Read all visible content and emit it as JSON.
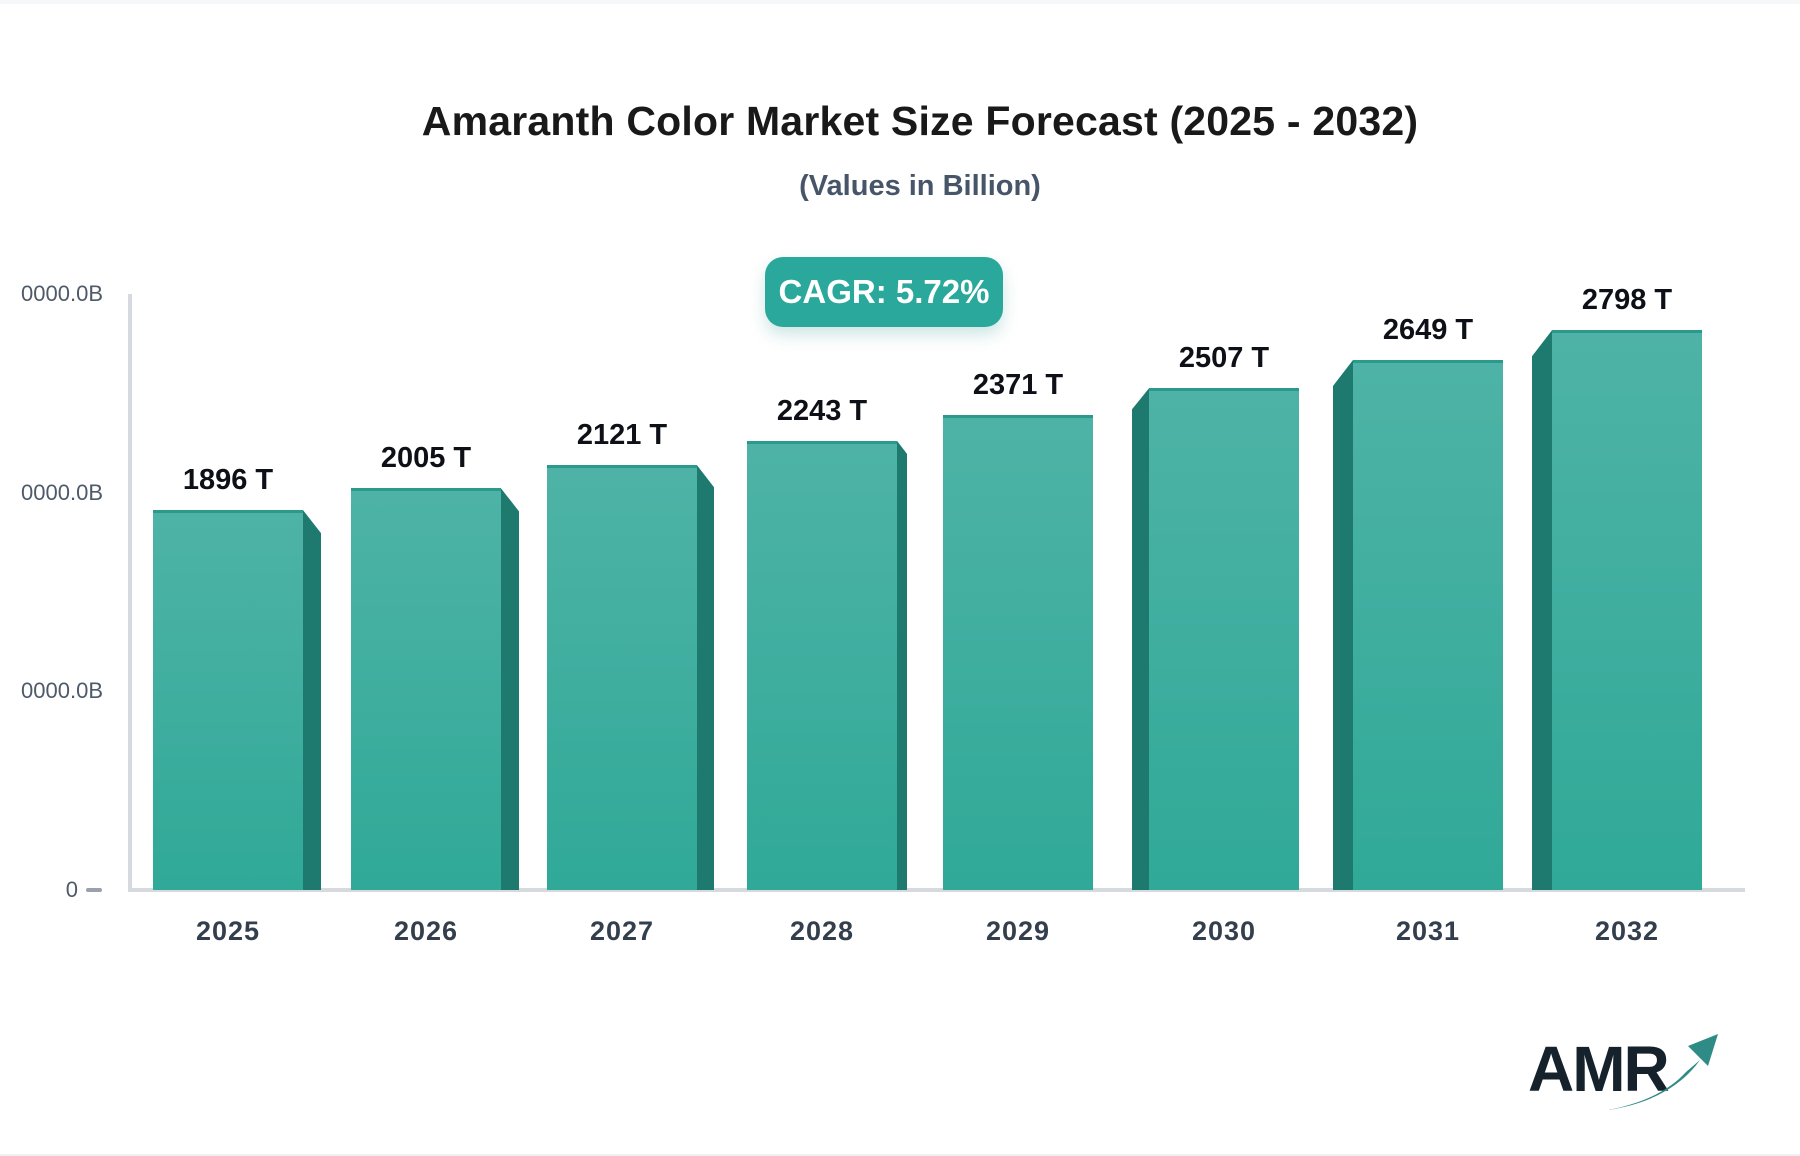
{
  "header": {
    "title": "Amaranth Color Market Size Forecast (2025 - 2032)",
    "subtitle": "(Values in Billion)"
  },
  "badge": {
    "label": "CAGR: 5.72%",
    "bg": "#29a89b"
  },
  "chart_data": {
    "type": "bar",
    "title": "Amaranth Color Market Size Forecast (2025 - 2032)",
    "subtitle": "(Values in Billion)",
    "categories": [
      "2025",
      "2026",
      "2027",
      "2028",
      "2029",
      "2030",
      "2031",
      "2032"
    ],
    "values": [
      1896,
      2005,
      2121,
      2243,
      2371,
      2507,
      2649,
      2798
    ],
    "data_labels": [
      "1896 T",
      "2005 T",
      "2121 T",
      "2243 T",
      "2371 T",
      "2507 T",
      "2649 T",
      "2798 T"
    ],
    "unit_suffix": "T",
    "cagr": "5.72%",
    "xlabel": "",
    "ylabel": "",
    "y_tick_labels": [
      "0000.0B",
      "0000.0B",
      "0000.0B"
    ],
    "y_zero_label": "0",
    "ylim": [
      0,
      2980
    ],
    "grid": false,
    "legend": false,
    "style": "3d-beveled-bars",
    "colors": {
      "bar_top": "#4eb3a6",
      "bar_bottom": "#30a998",
      "bar_side": "#1e7a6e",
      "axis": "#d6d9de",
      "accent": "#29a89b"
    }
  },
  "logo": {
    "text": "AMR",
    "text_color": "#15222c",
    "arrow_color": "#2e8b85"
  }
}
